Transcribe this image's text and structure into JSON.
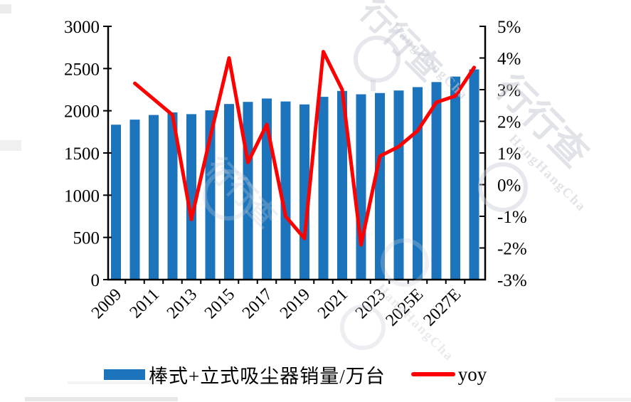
{
  "legend": {
    "bar_label": "棒式+立式吸尘器销量/万台",
    "line_label": "yoy"
  },
  "watermark": {
    "text": "行行查",
    "latin": "HangHangCha"
  },
  "colors": {
    "bar": "#1B74BC",
    "line": "#FE0000",
    "axis": "#000000",
    "watermark": "#C9CDD6"
  },
  "chart_data": {
    "type": "bar+line combo",
    "title": "",
    "categories": [
      "2009",
      "2010",
      "2011",
      "2012",
      "2013",
      "2014",
      "2015",
      "2016",
      "2017",
      "2018",
      "2019",
      "2020",
      "2021",
      "2022",
      "2023",
      "2024E",
      "2025E",
      "2026E",
      "2027E",
      "2028E"
    ],
    "x_tick_labels": [
      "2009",
      "2011",
      "2013",
      "2015",
      "2017",
      "2019",
      "2021",
      "2023",
      "2025E",
      "2027E"
    ],
    "x_tick_label_indices": [
      0,
      2,
      4,
      6,
      8,
      10,
      12,
      14,
      16,
      18
    ],
    "series": [
      {
        "name": "棒式+立式吸尘器销量/万台",
        "type": "bar",
        "axis": "left",
        "values": [
          1835,
          1895,
          1950,
          1980,
          1960,
          2005,
          2080,
          2105,
          2145,
          2110,
          2075,
          2165,
          2235,
          2195,
          2210,
          2240,
          2280,
          2340,
          2405,
          2490
        ]
      },
      {
        "name": "yoy",
        "type": "line",
        "axis": "right",
        "values": [
          null,
          3.2,
          2.7,
          2.2,
          -1.1,
          1.5,
          4.0,
          0.7,
          1.9,
          -1.0,
          -1.7,
          4.2,
          3.0,
          -1.9,
          0.9,
          1.2,
          1.7,
          2.6,
          2.8,
          3.7
        ]
      }
    ],
    "left_axis": {
      "min": 0,
      "max": 3000,
      "step": 500,
      "tick_labels": [
        "0",
        "500",
        "1000",
        "1500",
        "2000",
        "2500",
        "3000"
      ]
    },
    "right_axis": {
      "min": -3,
      "max": 5,
      "step": 1,
      "tick_labels": [
        "-3%",
        "-2%",
        "-1%",
        "0%",
        "1%",
        "2%",
        "3%",
        "4%",
        "5%"
      ]
    },
    "grid": false,
    "legend_position": "bottom"
  }
}
